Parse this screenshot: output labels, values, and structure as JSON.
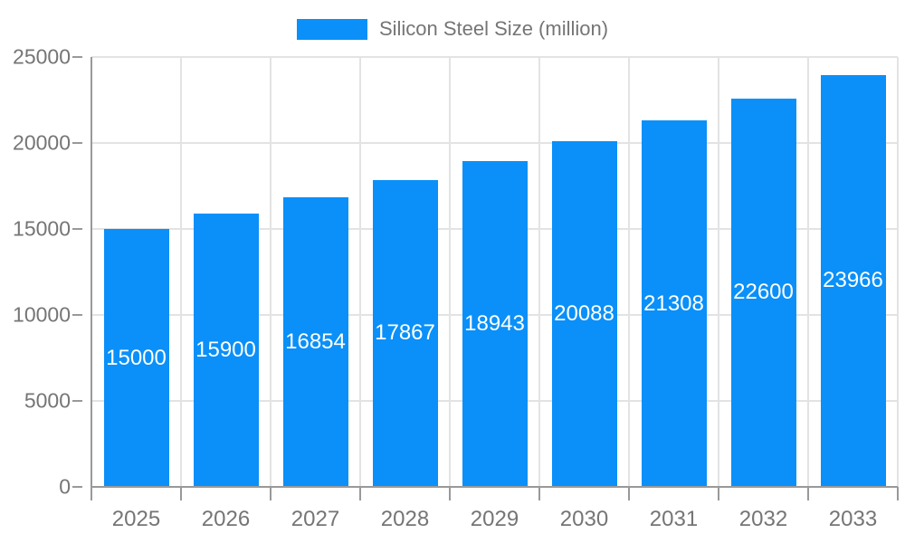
{
  "legend": {
    "label": "Silicon Steel Size (million)"
  },
  "colors": {
    "bar": "#0a90f8",
    "axis_line": "#999999",
    "gridline": "#e3e3e3",
    "axis_text": "#757575",
    "value_label_text": "#ffffff"
  },
  "chart_data": {
    "type": "bar",
    "title": "",
    "xlabel": "",
    "ylabel": "",
    "categories": [
      "2025",
      "2026",
      "2027",
      "2028",
      "2029",
      "2030",
      "2031",
      "2032",
      "2033"
    ],
    "series": [
      {
        "name": "Silicon Steel Size (million)",
        "values": [
          15000,
          15900,
          16854,
          17867,
          18943,
          20088,
          21308,
          22600,
          23966
        ],
        "color": "#0a90f8"
      }
    ],
    "value_labels_shown": true,
    "value_label_position": "center-of-bar",
    "ylim": [
      0,
      25000
    ],
    "yticks": [
      0,
      5000,
      10000,
      15000,
      20000,
      25000
    ],
    "grid": true,
    "legend_position": "top-center"
  }
}
